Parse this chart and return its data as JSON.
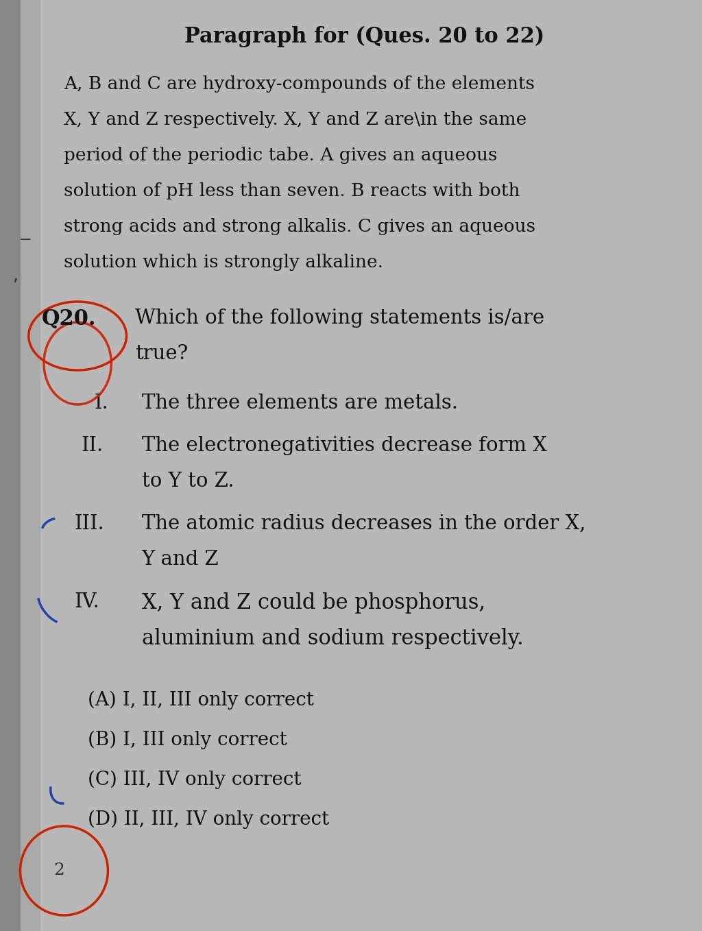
{
  "bg_color": "#b8b8b8",
  "page_bg": "#e0e0e0",
  "title": "Paragraph for (Ques. 20 to 22)",
  "paragraph_lines": [
    "A, B and C are hydroxy-compounds of the elements",
    "X, Y and Z respectively. X, Y and Z are\\in the same",
    "period of the periodic tabe. A gives an aqueous",
    "solution of pH less than seven. B reacts with both",
    "strong acids and strong alkalis. C gives an aqueous",
    "solution which is strongly alkaline."
  ],
  "q_label": "Q20.",
  "question_lines": [
    "Which of the following statements is/are",
    "true?"
  ],
  "stmt_I_num": "I.",
  "stmt_I": "The three elements are metals.",
  "stmt_II_num": "II.",
  "stmt_II_lines": [
    "The electronegativities decrease form X",
    "to Y to Z."
  ],
  "stmt_III_num": "III.",
  "stmt_III_lines": [
    "The atomic radius decreases in the order X,",
    "Y and Z"
  ],
  "stmt_IV_num": "IV.",
  "stmt_IV_lines": [
    "X, Y and Z could be phosphorus,",
    "aluminium and sodium respectively."
  ],
  "opt_A": "(A) I, II, III only correct",
  "opt_B": "(B) I, III only correct",
  "opt_C": "(C) III, IV only correct",
  "opt_D": "(D) II, III, IV only correct",
  "text_color": "#111111",
  "title_color": "#111111",
  "red_color": "#cc2200",
  "blue_color": "#2244aa"
}
